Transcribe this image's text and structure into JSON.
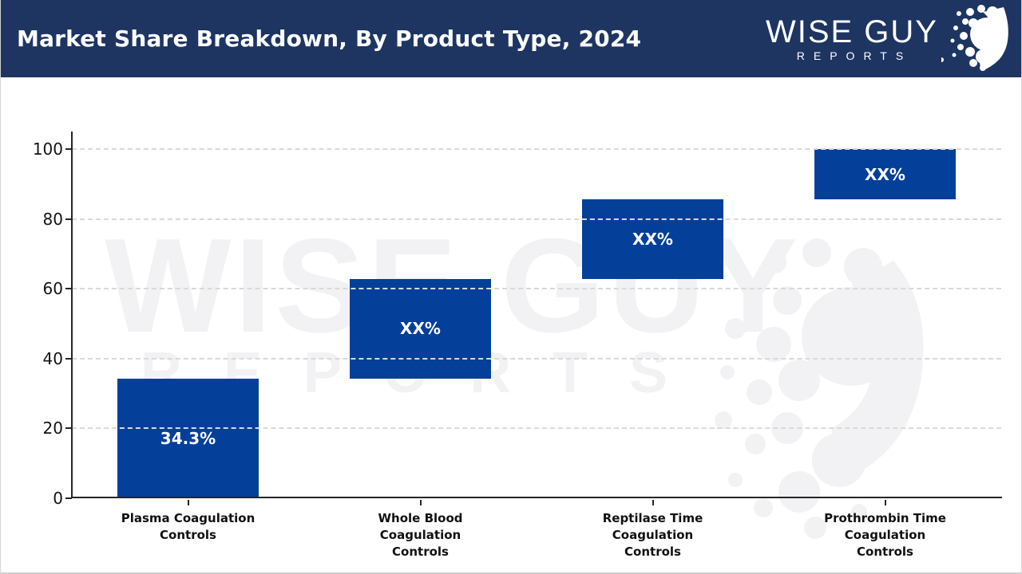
{
  "header": {
    "title": "Market Share Breakdown, By Product Type, 2024",
    "bg_color": "#1e3562",
    "logo": {
      "line1": "WISE GUY",
      "line2": "REPORTS",
      "icon": "dotted-head-profile"
    }
  },
  "watermark": {
    "line1": "WISE GUY",
    "line2": "REPORTS",
    "icon": "dotted-head-profile"
  },
  "chart_data": {
    "type": "bar",
    "variant": "floating-segment-waterfall",
    "title": "Market Share Breakdown, By Product Type, 2024",
    "categories": [
      "Plasma Coagulation Controls",
      "Whole Blood Coagulation Controls",
      "Reptilase Time Coagulation Controls",
      "Prothrombin Time Coagulation Controls"
    ],
    "category_display_lines": [
      [
        "Plasma Coagulation",
        "Controls"
      ],
      [
        "Whole Blood",
        "Coagulation",
        "Controls"
      ],
      [
        "Reptilase Time",
        "Coagulation",
        "Controls"
      ],
      [
        "Prothrombin Time",
        "Coagulation",
        "Controls"
      ]
    ],
    "bars": [
      {
        "label": "34.3%",
        "start": 0,
        "end": 34.3
      },
      {
        "label": "XX%",
        "start": 34.3,
        "end": 62.8
      },
      {
        "label": "XX%",
        "start": 62.8,
        "end": 85.6
      },
      {
        "label": "XX%",
        "start": 85.6,
        "end": 100
      }
    ],
    "yticks": [
      0,
      20,
      40,
      60,
      80,
      100
    ],
    "ylim": [
      0,
      104
    ],
    "xlabel": "",
    "ylabel": "",
    "legend": "none",
    "grid": "horizontal-dashed",
    "bar_color": "#04409a",
    "bar_label_color": "#ffffff",
    "axis_color": "#262626"
  }
}
